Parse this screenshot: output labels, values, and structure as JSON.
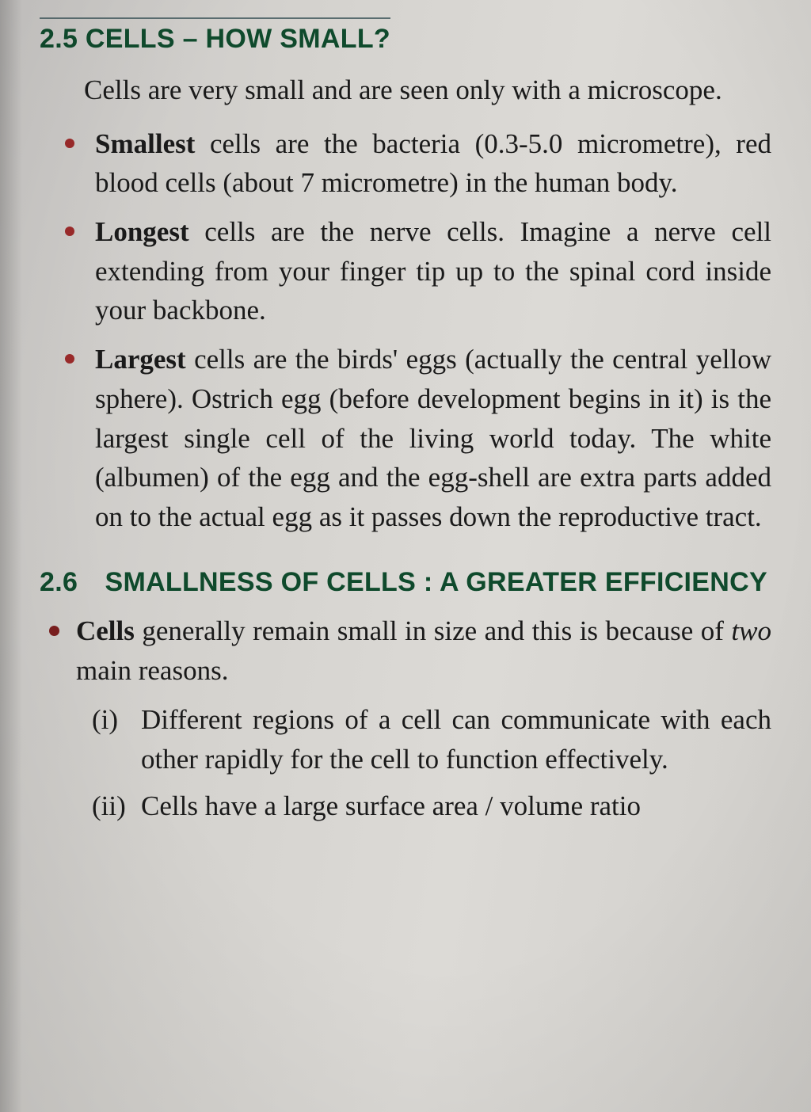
{
  "colors": {
    "heading": "#0f4a2c",
    "text": "#1a1a1a",
    "bullet": "#9a2a2a",
    "background_tint": "#d4d2ce"
  },
  "typography": {
    "heading_font": "Arial",
    "body_font": "Georgia",
    "heading_size_pt": 18,
    "body_size_pt": 17
  },
  "section25": {
    "number": "2.5",
    "title": "CELLS – HOW SMALL?",
    "full_heading": "2.5 CELLS – HOW SMALL?",
    "intro": "Cells are very small and are seen only with a microscope.",
    "bullets": [
      {
        "lead": "Smallest",
        "rest": " cells are the bacteria (0.3-5.0 micrometre), red blood cells (about 7 micrometre) in the human body."
      },
      {
        "lead": "Longest",
        "rest": " cells are the nerve cells. Imagine a nerve cell extending from your finger tip up to the spinal cord inside your backbone."
      },
      {
        "lead": "Largest",
        "rest": " cells are the birds' eggs (actually the central yellow sphere). Ostrich egg (before development begins in it) is the largest single cell of the living world today. The white (albumen) of the egg and the egg-shell are extra parts added on to the actual egg as it passes down the reproductive tract."
      }
    ]
  },
  "section26": {
    "number": "2.6",
    "title": "SMALLNESS OF CELLS : A GREATER EFFICIENCY",
    "full_heading": "2.6 SMALLNESS OF CELLS : A GREATER EFFICIENCY",
    "lead_bullet": {
      "bold": "Cells",
      "mid": " generally remain small in size and this is because of ",
      "italic": "two",
      "tail": " main reasons."
    },
    "reasons": [
      {
        "num": "(i)",
        "text": "Different regions of a cell can communicate with each other rapidly for the cell to function effectively."
      },
      {
        "num": "(ii)",
        "text": "Cells have a large surface area / volume ratio"
      }
    ]
  }
}
